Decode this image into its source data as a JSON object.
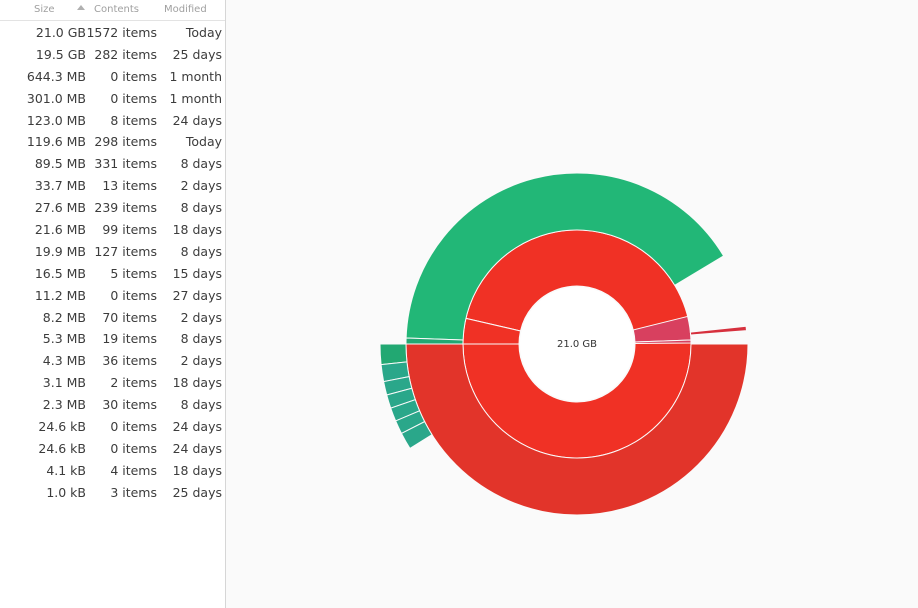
{
  "table": {
    "headers": {
      "size": "Size",
      "contents": "Contents",
      "modified": "Modified"
    },
    "rows": [
      {
        "size": "21.0 GB",
        "contents": "1572 items",
        "modified": "Today"
      },
      {
        "size": "19.5 GB",
        "contents": "282 items",
        "modified": "25 days"
      },
      {
        "size": "644.3 MB",
        "contents": "0 items",
        "modified": "1 month"
      },
      {
        "size": "301.0 MB",
        "contents": "0 items",
        "modified": "1 month"
      },
      {
        "size": "123.0 MB",
        "contents": "8 items",
        "modified": "24 days"
      },
      {
        "size": "119.6 MB",
        "contents": "298 items",
        "modified": "Today"
      },
      {
        "size": "89.5 MB",
        "contents": "331 items",
        "modified": "8 days"
      },
      {
        "size": "33.7 MB",
        "contents": "13 items",
        "modified": "2 days"
      },
      {
        "size": "27.6 MB",
        "contents": "239 items",
        "modified": "8 days"
      },
      {
        "size": "21.6 MB",
        "contents": "99 items",
        "modified": "18 days"
      },
      {
        "size": "19.9 MB",
        "contents": "127 items",
        "modified": "8 days"
      },
      {
        "size": "16.5 MB",
        "contents": "5 items",
        "modified": "15 days"
      },
      {
        "size": "11.2 MB",
        "contents": "0 items",
        "modified": "27 days"
      },
      {
        "size": "8.2 MB",
        "contents": "70 items",
        "modified": "2 days"
      },
      {
        "size": "5.3 MB",
        "contents": "19 items",
        "modified": "8 days"
      },
      {
        "size": "4.3 MB",
        "contents": "36 items",
        "modified": "2 days"
      },
      {
        "size": "3.1 MB",
        "contents": "2 items",
        "modified": "18 days"
      },
      {
        "size": "2.3 MB",
        "contents": "30 items",
        "modified": "8 days"
      },
      {
        "size": "24.6 kB",
        "contents": "0 items",
        "modified": "24 days"
      },
      {
        "size": "24.6 kB",
        "contents": "0 items",
        "modified": "24 days"
      },
      {
        "size": "4.1 kB",
        "contents": "4 items",
        "modified": "18 days"
      },
      {
        "size": "1.0 kB",
        "contents": "3 items",
        "modified": "25 days"
      }
    ]
  },
  "ring_chart": {
    "center_label": "21.0 GB",
    "colors": {
      "red": "#f03125",
      "red_outer": "#e2342a",
      "green": "#22b777",
      "green_dark": "#22a872",
      "teal": "#2aa78a",
      "pink": "#d8405f",
      "crimson": "#d6303d"
    }
  }
}
